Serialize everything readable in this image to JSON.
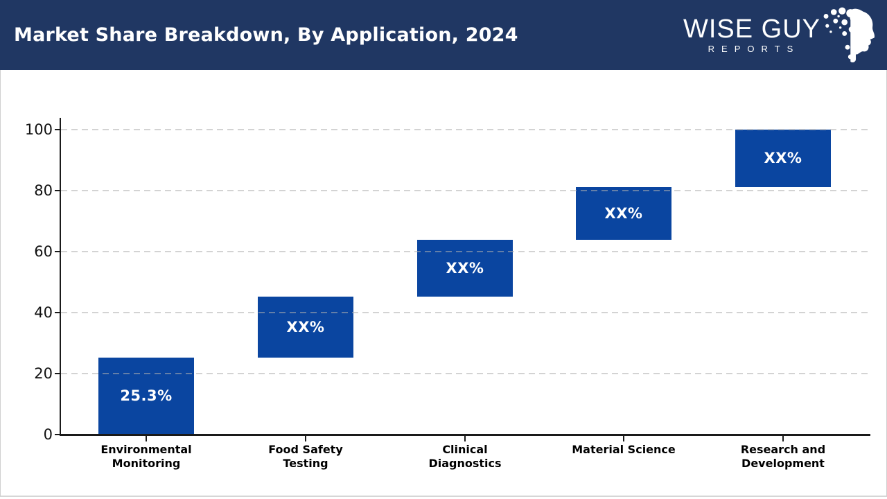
{
  "header": {
    "title": "Market Share Breakdown, By Application, 2024",
    "bg_color": "#203763",
    "logo": {
      "line1": "WISE GUY",
      "line2": "REPORTS"
    }
  },
  "watermark": {
    "line1": "WISE GUY",
    "line2": "REPORTS"
  },
  "chart_data": {
    "type": "bar",
    "subtype": "waterfall",
    "title": "Market Share Breakdown, By Application, 2024",
    "categories": [
      "Environmental\nMonitoring",
      "Food Safety\nTesting",
      "Clinical\nDiagnostics",
      "Material Science",
      "Research and\nDevelopment"
    ],
    "segments": [
      {
        "category": "Environmental Monitoring",
        "start": 0,
        "end": 25.3,
        "label": "25.3%"
      },
      {
        "category": "Food Safety Testing",
        "start": 25.3,
        "end": 45.3,
        "label": "XX%"
      },
      {
        "category": "Clinical Diagnostics",
        "start": 45.3,
        "end": 63.9,
        "label": "XX%"
      },
      {
        "category": "Material Science",
        "start": 63.9,
        "end": 81.2,
        "label": "XX%"
      },
      {
        "category": "Research and Development",
        "start": 81.2,
        "end": 100,
        "label": "XX%"
      }
    ],
    "yticks": [
      0,
      20,
      40,
      60,
      80,
      100
    ],
    "ylim": [
      0,
      100
    ],
    "bar_color": "#0a45a0",
    "grid": "horizontal-dashed",
    "legend": "none"
  }
}
